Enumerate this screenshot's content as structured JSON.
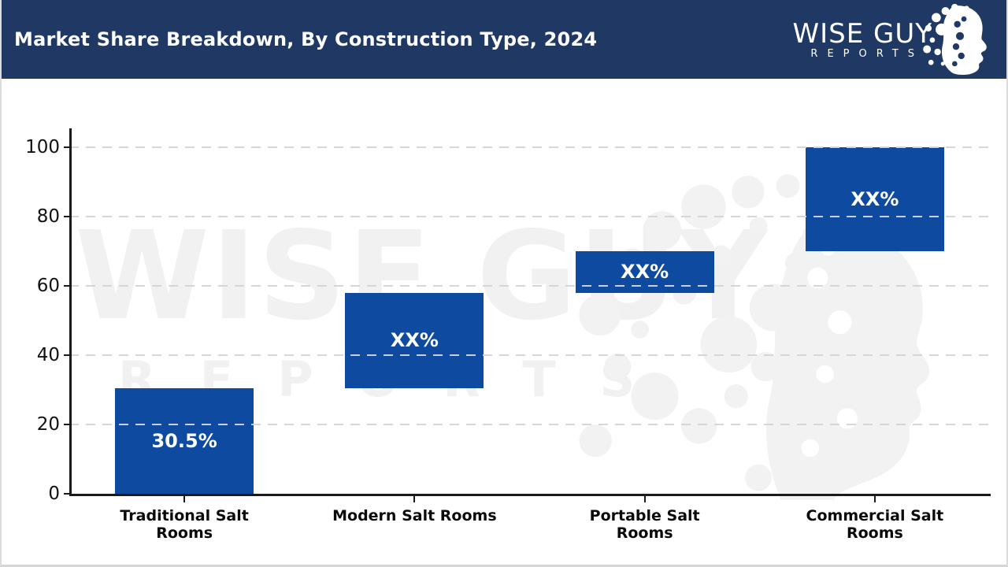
{
  "header": {
    "title": "Market Share Breakdown, By Construction Type, 2024",
    "bg_color": "#1f3864",
    "logo": {
      "brand": "WISE GUY",
      "sub": "REPORTS"
    }
  },
  "watermark": {
    "brand": "WISE GUY",
    "sub": "REPORTS",
    "color": "#f1f1f1"
  },
  "chart_data": {
    "type": "bar",
    "subtype": "floating-waterfall",
    "title": "Market Share Breakdown, By Construction Type, 2024",
    "categories": [
      "Traditional Salt Rooms",
      "Modern Salt Rooms",
      "Portable Salt Rooms",
      "Commercial Salt Rooms"
    ],
    "category_label_lines": [
      [
        "Traditional Salt",
        "Rooms"
      ],
      [
        "Modern Salt Rooms"
      ],
      [
        "Portable Salt",
        "Rooms"
      ],
      [
        "Commercial Salt",
        "Rooms"
      ]
    ],
    "bars": [
      {
        "category": "Traditional Salt Rooms",
        "start": 0,
        "end": 30.5,
        "label": "30.5%"
      },
      {
        "category": "Modern Salt Rooms",
        "start": 30.5,
        "end": 58,
        "label": "XX%"
      },
      {
        "category": "Portable Salt Rooms",
        "start": 58,
        "end": 70,
        "label": "XX%"
      },
      {
        "category": "Commercial Salt Rooms",
        "start": 70,
        "end": 100,
        "label": "XX%"
      }
    ],
    "yticks": [
      0,
      20,
      40,
      60,
      80,
      100
    ],
    "ylim": [
      0,
      105.5
    ],
    "xlabel": "",
    "ylabel": "",
    "bar_color": "#0d4aa0",
    "grid": {
      "horizontal": true,
      "style": "dashed",
      "color": "#d4d4d4"
    },
    "legend": null
  }
}
